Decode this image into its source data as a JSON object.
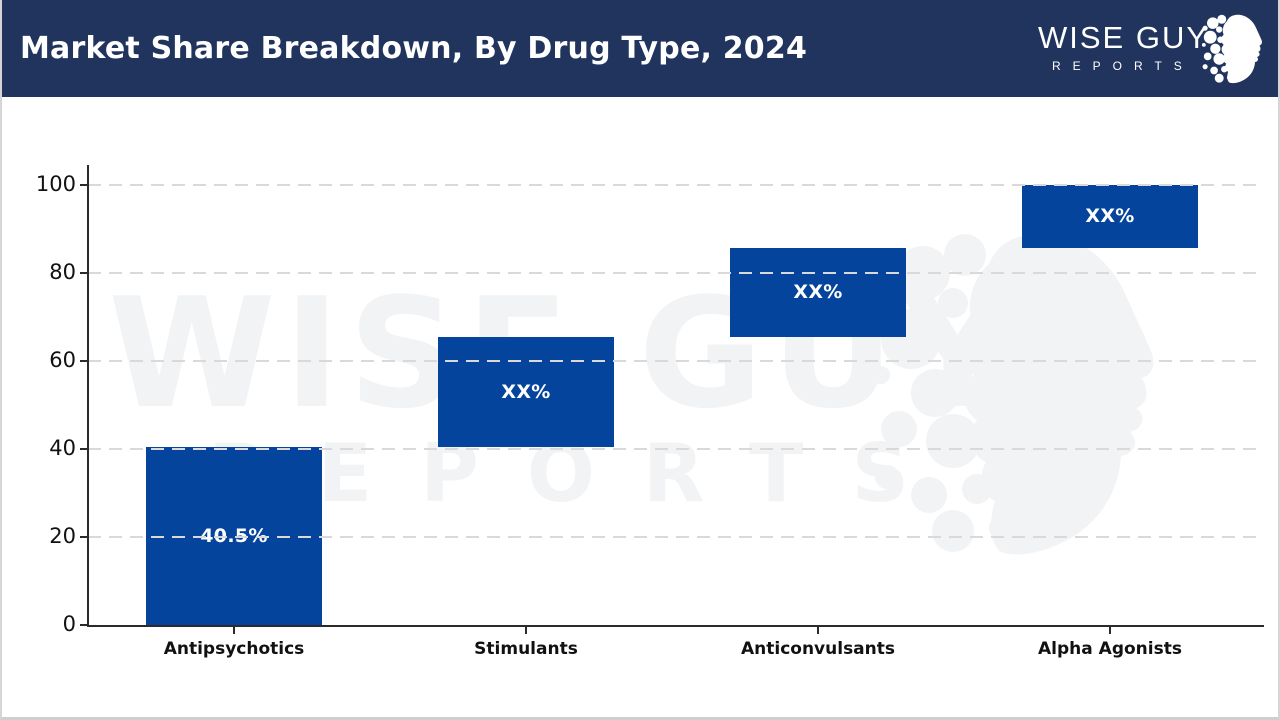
{
  "header": {
    "title": "Market Share Breakdown, By Drug Type, 2024",
    "logo": {
      "line1": "WISE GUY",
      "line2": "REPORTS"
    }
  },
  "watermark": {
    "line1": "WISE GUY",
    "line2": "REPORTS"
  },
  "colors": {
    "header_bg": "#20345e",
    "bar": "#04449c",
    "grid": "#d9d9d9",
    "axis": "#2b2b2b",
    "watermark": "#f2f3f5",
    "title_text": "#ffffff",
    "frame_border": "#d6d6d6"
  },
  "chart_data": {
    "type": "bar",
    "subtype": "stepped-waterfall",
    "title": "Market Share Breakdown, By Drug Type, 2024",
    "categories": [
      "Antipsychotics",
      "Stimulants",
      "Anticonvulsants",
      "Alpha Agonists"
    ],
    "segments": [
      {
        "start": 0,
        "end": 40.5,
        "label": "40.5%"
      },
      {
        "start": 40.5,
        "end": 65.5,
        "label": "XX%"
      },
      {
        "start": 65.5,
        "end": 85.7,
        "label": "XX%"
      },
      {
        "start": 85.7,
        "end": 100,
        "label": "XX%"
      }
    ],
    "values_pct": [
      40.5,
      25.0,
      20.2,
      14.3
    ],
    "xlabel": "",
    "ylabel": "",
    "yticks": [
      0,
      20,
      40,
      60,
      80,
      100
    ],
    "ylim": [
      0,
      104.5
    ],
    "grid": "horizontal-dashed",
    "legend": "none",
    "bar_color": "#04449c"
  }
}
